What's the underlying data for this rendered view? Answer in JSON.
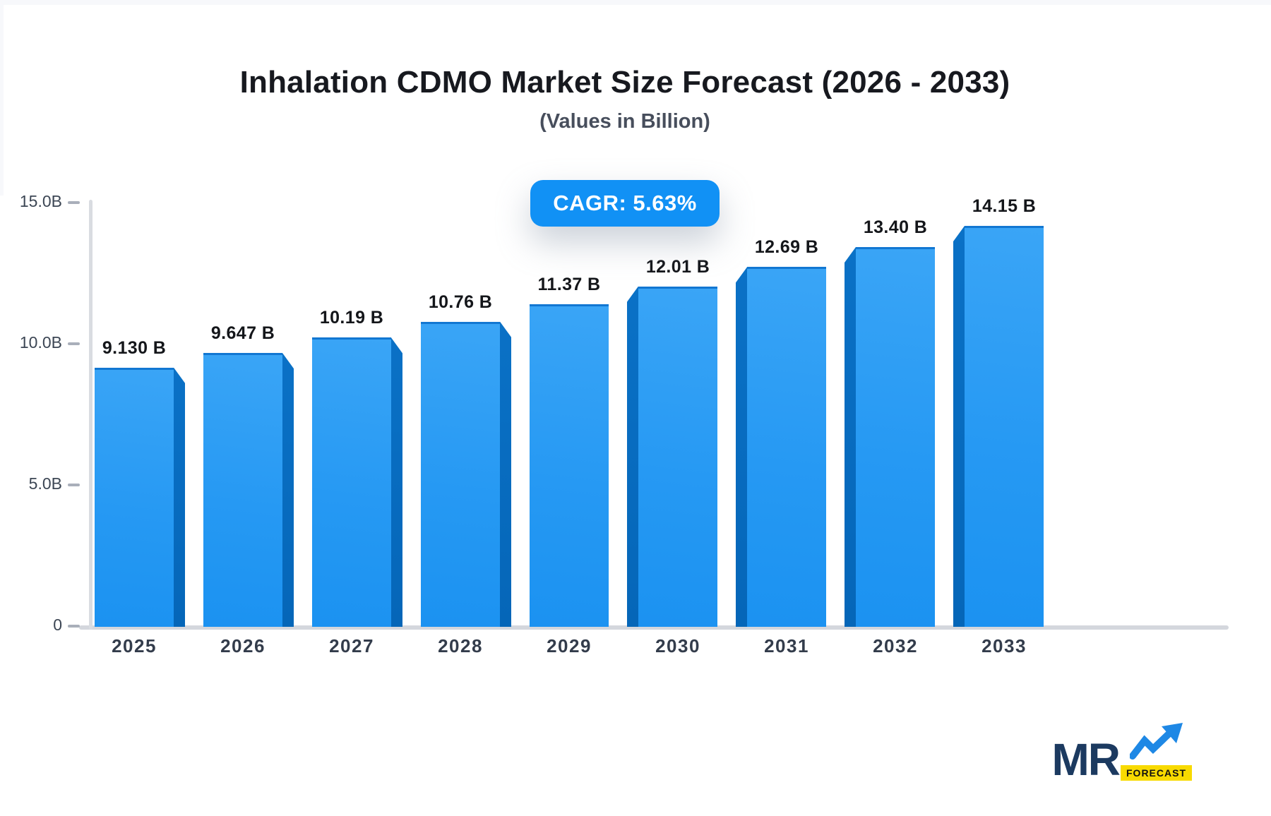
{
  "header": {
    "title": "Inhalation CDMO Market Size Forecast (2026 - 2033)",
    "subtitle": "(Values in Billion)",
    "cagr_label": "CAGR: 5.63%"
  },
  "chart_data": {
    "type": "bar",
    "title": "Inhalation CDMO Market Size Forecast (2026 - 2033)",
    "subtitle": "(Values in Billion)",
    "cagr": "5.63%",
    "categories": [
      "2025",
      "2026",
      "2027",
      "2028",
      "2029",
      "2030",
      "2031",
      "2032",
      "2033"
    ],
    "values": [
      9.13,
      9.647,
      10.19,
      10.76,
      11.37,
      12.01,
      12.69,
      13.4,
      14.15
    ],
    "value_labels": [
      "9.130 B",
      "9.647 B",
      "10.19 B",
      "10.76 B",
      "11.37 B",
      "12.01 B",
      "12.69 B",
      "13.40 B",
      "14.15 B"
    ],
    "ylabel": "",
    "xlabel": "",
    "ylim": [
      0,
      15
    ],
    "yticks": [
      {
        "value": 0,
        "label": "0"
      },
      {
        "value": 5,
        "label": "5.0B"
      },
      {
        "value": 10,
        "label": "10.0B"
      },
      {
        "value": 15,
        "label": "15.0B"
      }
    ],
    "grid": false,
    "legend": false,
    "bar_style": "3d-extruded",
    "bar_color": "#2b9cf4",
    "bar_side_color": "#0768ba"
  },
  "colors": {
    "badge_bg": "#1191f5",
    "badge_text": "#ffffff"
  },
  "logo": {
    "mr": "MR",
    "forecast": "FORECAST"
  }
}
